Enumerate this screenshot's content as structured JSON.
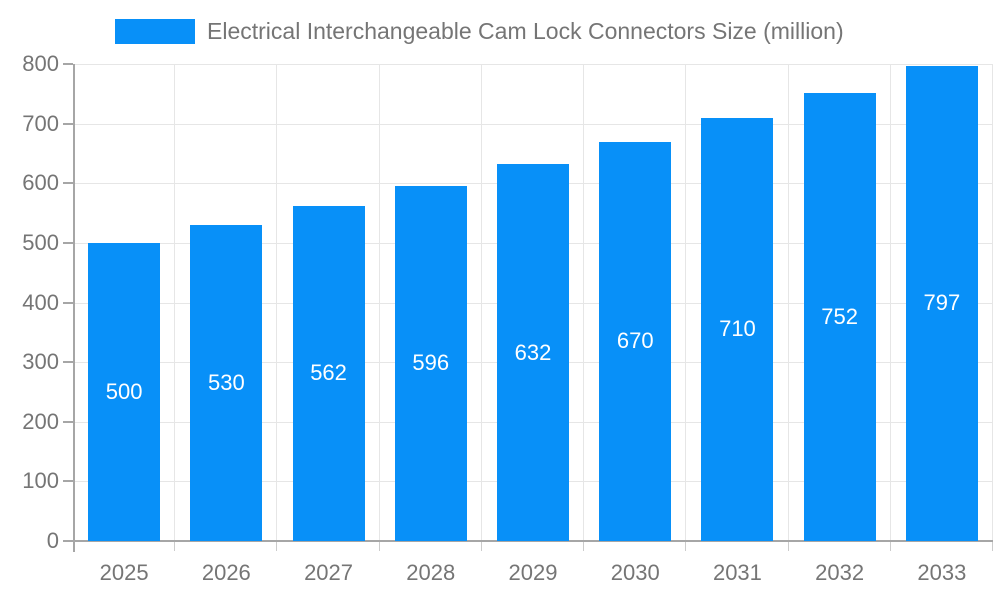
{
  "chart_data": {
    "type": "bar",
    "title": "Electrical Interchangeable Cam Lock Connectors Size (million)",
    "categories": [
      "2025",
      "2026",
      "2027",
      "2028",
      "2029",
      "2030",
      "2031",
      "2032",
      "2033"
    ],
    "values": [
      500,
      530,
      562,
      596,
      632,
      670,
      710,
      752,
      797
    ],
    "xlabel": "",
    "ylabel": "",
    "ylim": [
      0,
      800
    ],
    "ytick_step": 100,
    "grid": true,
    "legend_position": "top",
    "value_labels": "centered-inside-bars"
  },
  "colors": {
    "bar": "#0890F8",
    "grid": "#e6e6e6",
    "axis": "#a6a6a6",
    "x_tick": "#cccccc",
    "text": "#757575",
    "value_label": "#ffffff",
    "background": "#ffffff"
  }
}
